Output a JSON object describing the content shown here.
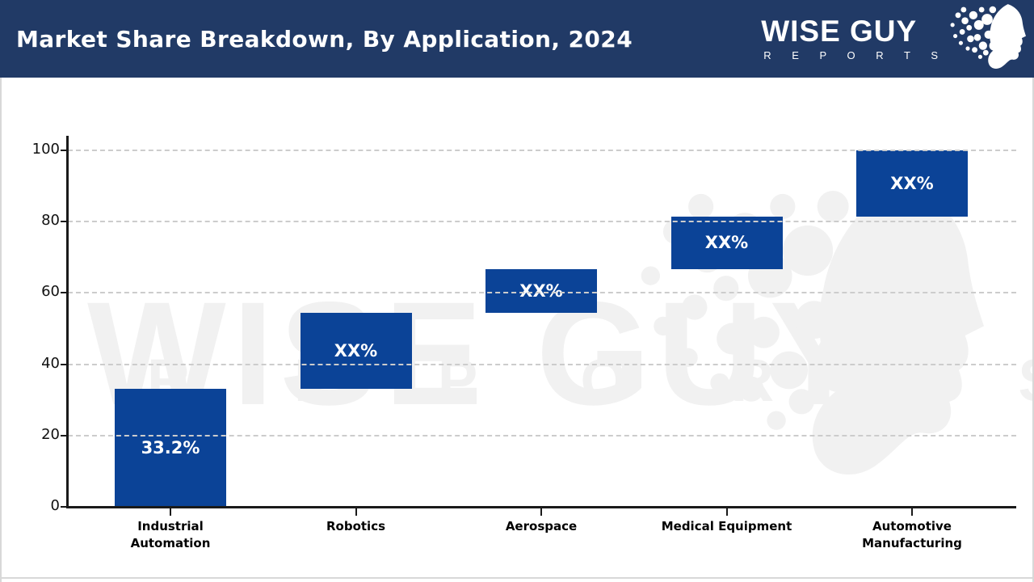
{
  "header": {
    "title": "Market Share Breakdown, By Application, 2024",
    "brand": {
      "name_top": "WISE GUY",
      "name_bottom": "R E P O R T S"
    }
  },
  "watermark": {
    "line1": "WISE GUY",
    "line2": "R E P O R T S"
  },
  "colors": {
    "header_bg": "#213A66",
    "header_text": "#FFFFFF",
    "bar": "#0B4397",
    "bar_label_text": "#FFFFFF",
    "gridline": "#CCCCCC",
    "axis": "#1A1A1A",
    "watermark": "#F1F1F1",
    "frame_line": "#D8D8D8"
  },
  "chart_data": {
    "type": "bar",
    "subtype": "waterfall",
    "title": "Market Share Breakdown, By Application, 2024",
    "xlabel": "",
    "ylabel": "",
    "ylim": [
      0,
      100
    ],
    "yticks": [
      0,
      20,
      40,
      60,
      80,
      100
    ],
    "grid": "horizontal dashed",
    "legend": "none",
    "categories": [
      "Industrial Automation",
      "Robotics",
      "Aerospace",
      "Medical Equipment",
      "Automotive Manufacturing"
    ],
    "category_label_lines": [
      [
        "Industrial",
        "Automation"
      ],
      [
        "Robotics"
      ],
      [
        "Aerospace"
      ],
      [
        "Medical Equipment"
      ],
      [
        "Automotive",
        "Manufacturing"
      ]
    ],
    "segments": [
      {
        "category": "Industrial Automation",
        "start": 0,
        "end": 33.2,
        "label": "33.2%"
      },
      {
        "category": "Robotics",
        "start": 33.2,
        "end": 54.5,
        "label": "XX%"
      },
      {
        "category": "Aerospace",
        "start": 54.5,
        "end": 66.7,
        "label": "XX%"
      },
      {
        "category": "Medical Equipment",
        "start": 66.7,
        "end": 81.5,
        "label": "XX%"
      },
      {
        "category": "Automotive Manufacturing",
        "start": 81.5,
        "end": 100,
        "label": "XX%"
      }
    ]
  }
}
